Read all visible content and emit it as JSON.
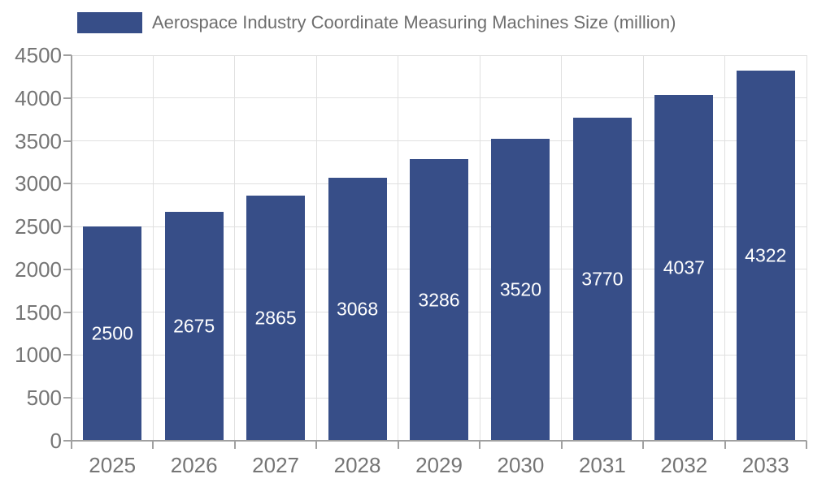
{
  "chart_data": {
    "type": "bar",
    "title": "Aerospace Industry Coordinate Measuring Machines Size (million)",
    "categories": [
      "2025",
      "2026",
      "2027",
      "2028",
      "2029",
      "2030",
      "2031",
      "2032",
      "2033"
    ],
    "values": [
      2500,
      2675,
      2865,
      3068,
      3286,
      3520,
      3770,
      4037,
      4322
    ],
    "xlabel": "",
    "ylabel": "",
    "ylim": [
      0,
      4500
    ],
    "ytick_step": 500,
    "grid": true,
    "legend_position": "top-left",
    "bar_value_labels": "inside-middle"
  },
  "colors": {
    "bar": "#374e88",
    "grid": "#e0e0e0",
    "axis": "#a0a0a0",
    "tick_label": "#757575",
    "legend_text": "#6e6e6e",
    "value_label": "#ffffff",
    "background": "#ffffff"
  }
}
